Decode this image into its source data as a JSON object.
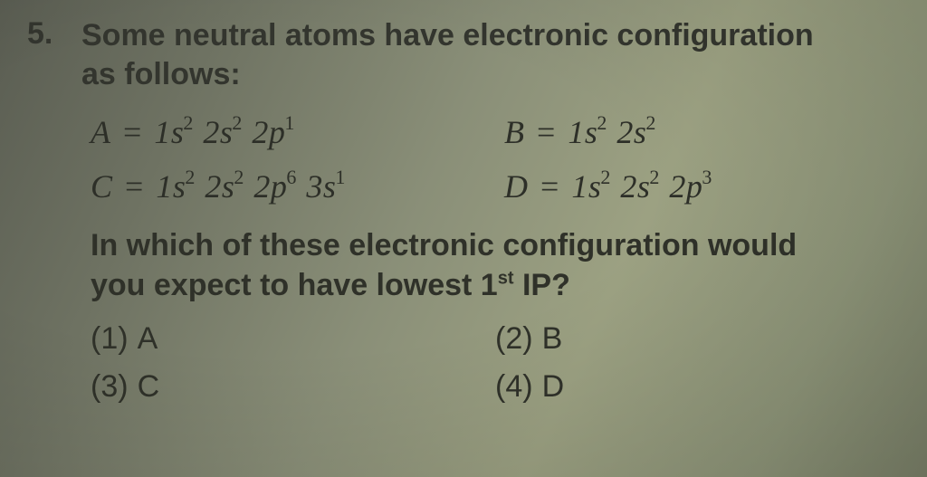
{
  "question": {
    "number": "5.",
    "text_line1": "Some neutral atoms have electronic configuration",
    "text_line2": "as follows:"
  },
  "equations": {
    "A": {
      "label": "A",
      "terms": [
        [
          "1s",
          "2"
        ],
        [
          "2s",
          "2"
        ],
        [
          "2p",
          "1"
        ]
      ]
    },
    "B": {
      "label": "B",
      "terms": [
        [
          "1s",
          "2"
        ],
        [
          "2s",
          "2"
        ]
      ]
    },
    "C": {
      "label": "C",
      "terms": [
        [
          "1s",
          "2"
        ],
        [
          "2s",
          "2"
        ],
        [
          "2p",
          "6"
        ],
        [
          "3s",
          "1"
        ]
      ]
    },
    "D": {
      "label": "D",
      "terms": [
        [
          "1s",
          "2"
        ],
        [
          "2s",
          "2"
        ],
        [
          "2p",
          "3"
        ]
      ]
    }
  },
  "followup": {
    "line1": "In which of these electronic configuration would",
    "line2_pre": "you expect to have lowest 1",
    "line2_sup": "st",
    "line2_post": " IP?"
  },
  "options": {
    "o1": {
      "label": "(1)",
      "value": "A"
    },
    "o2": {
      "label": "(2)",
      "value": "B"
    },
    "o3": {
      "label": "(3)",
      "value": "C"
    },
    "o4": {
      "label": "(4)",
      "value": "D"
    }
  },
  "style": {
    "text_color": "#2f3129",
    "question_fontsize": 34,
    "eq_fontsize": 36,
    "eq_sup_fontsize": 22,
    "background_gradient": [
      "#5a5d52",
      "#6e7262",
      "#8a8f78",
      "#9ca182",
      "#8d9478",
      "#7a8068"
    ]
  }
}
